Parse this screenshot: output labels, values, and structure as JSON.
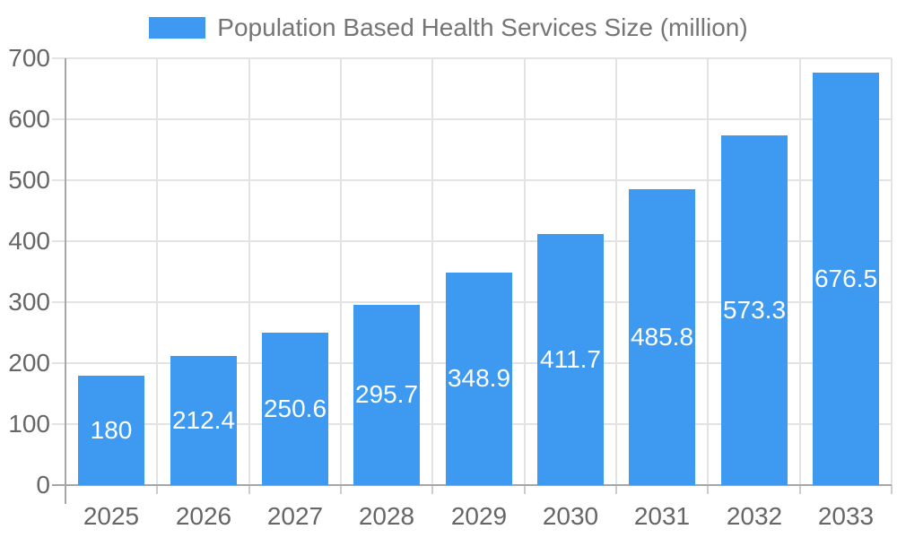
{
  "chart_data": {
    "type": "bar",
    "title": "Population Based Health Services Size (million)",
    "categories": [
      "2025",
      "2026",
      "2027",
      "2028",
      "2029",
      "2030",
      "2031",
      "2032",
      "2033"
    ],
    "values": [
      180,
      212.4,
      250.6,
      295.7,
      348.9,
      411.7,
      485.8,
      573.3,
      676.5
    ],
    "value_labels": [
      "180",
      "212.4",
      "250.6",
      "295.7",
      "348.9",
      "411.7",
      "485.8",
      "573.3",
      "676.5"
    ],
    "xlabel": "",
    "ylabel": "",
    "ylim": [
      0,
      700
    ],
    "yticks": [
      0,
      100,
      200,
      300,
      400,
      500,
      600,
      700
    ],
    "grid": true,
    "legend_position": "top",
    "bar_label_position": "inside-center"
  },
  "colors": {
    "bar": "#3d9af0",
    "bar_label": "#ffffff",
    "axis_line": "#a6a6a6",
    "gridline": "#e3e3e3",
    "tick": "#cccccc",
    "axis_label": "#666666",
    "legend_text": "#757575",
    "background": "#ffffff"
  }
}
